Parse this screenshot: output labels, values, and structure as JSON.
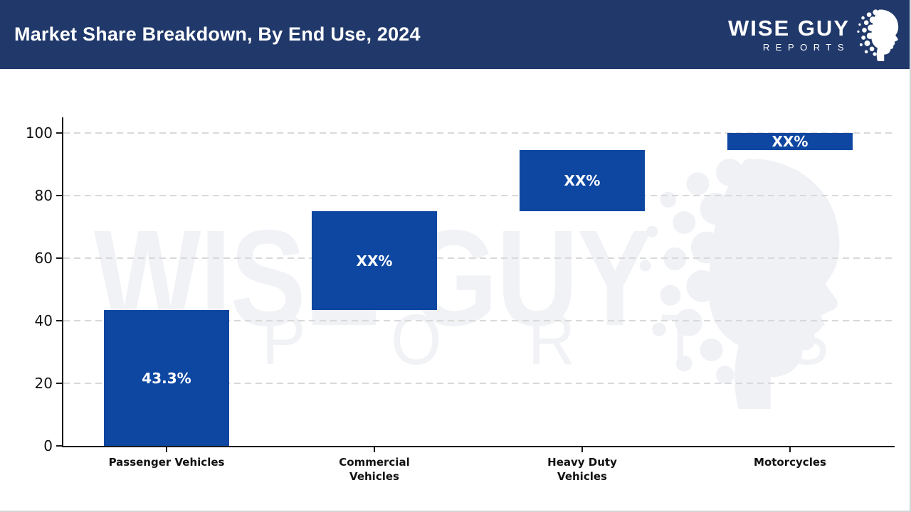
{
  "header": {
    "title": "Market Share Breakdown, By End Use, 2024",
    "logo": {
      "line1": "WISE GUY",
      "line2": "REPORTS"
    }
  },
  "watermark": {
    "line1": "WISE GUY",
    "line2": "P O R T S"
  },
  "chart_data": {
    "type": "bar",
    "subtype": "waterfall",
    "title": "Market Share Breakdown, By End Use, 2024",
    "categories": [
      "Passenger Vehicles",
      "Commercial\nVehicles",
      "Heavy Duty\nVehicles",
      "Motorcycles"
    ],
    "segments": [
      {
        "category": "Passenger Vehicles",
        "start": 0,
        "end": 43.3,
        "label": "43.3%"
      },
      {
        "category": "Commercial Vehicles",
        "start": 43.3,
        "end": 75.0,
        "label": "XX%"
      },
      {
        "category": "Heavy Duty Vehicles",
        "start": 75.0,
        "end": 94.5,
        "label": "XX%"
      },
      {
        "category": "Motorcycles",
        "start": 94.5,
        "end": 100.0,
        "label": "XX%"
      }
    ],
    "y_ticks": [
      0,
      20,
      40,
      60,
      80,
      100
    ],
    "ylim": [
      0,
      100
    ],
    "xlabel": "",
    "ylabel": "",
    "grid": "horizontal-dashed",
    "legend": "none",
    "bar_color": "#0d47a1",
    "bar_label_color": "#ffffff",
    "axis_color": "#1a1a1a",
    "grid_color": "#d9d9d9",
    "header_color": "#20386a"
  }
}
